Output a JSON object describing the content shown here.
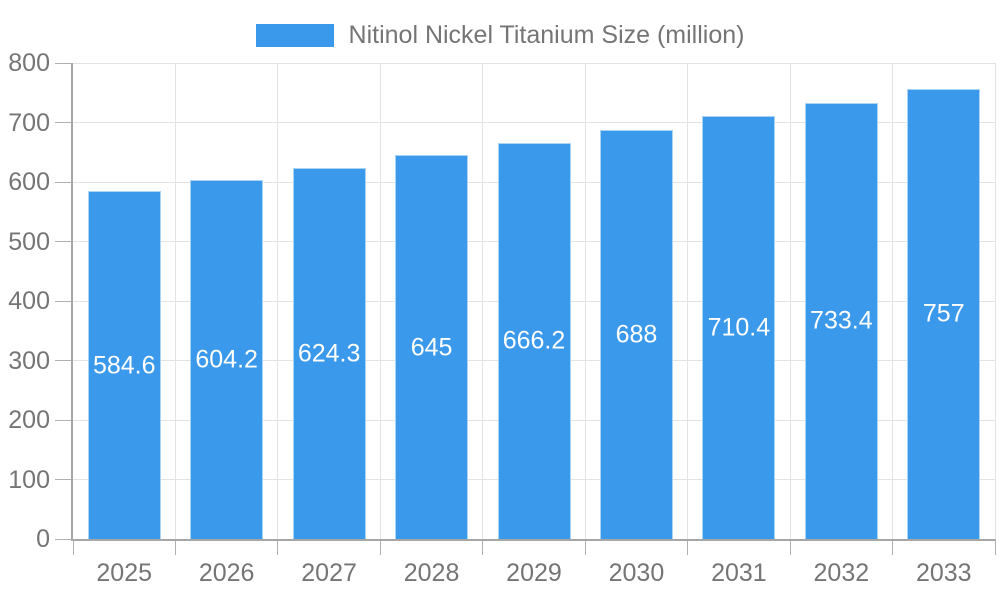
{
  "legend": {
    "label": "Nitinol Nickel Titanium Size (million)"
  },
  "chart_data": {
    "type": "bar",
    "title": "Nitinol Nickel Titanium Size (million)",
    "categories": [
      "2025",
      "2026",
      "2027",
      "2028",
      "2029",
      "2030",
      "2031",
      "2032",
      "2033"
    ],
    "values": [
      584.6,
      604.2,
      624.3,
      645,
      666.2,
      688,
      710.4,
      733.4,
      757
    ],
    "value_labels": [
      "584.6",
      "604.2",
      "624.3",
      "645",
      "666.2",
      "688",
      "710.4",
      "733.4",
      "757"
    ],
    "legend_entries": [
      "Nitinol Nickel Titanium Size (million)"
    ],
    "legend_position": "top-center",
    "xlabel": "",
    "ylabel": "",
    "ylim": [
      0,
      800
    ],
    "ytick_step": 100,
    "yticks": [
      0,
      100,
      200,
      300,
      400,
      500,
      600,
      700,
      800
    ],
    "grid": true,
    "value_label_position": "center-inside"
  },
  "colors": {
    "bar": "#3B99EB",
    "bar_border": "#A9D4F6",
    "grid": "#E3E3E3",
    "axis": "#A6A6A6",
    "tick": "#B0B0B0",
    "axis_label_text": "#757575",
    "legend_text": "#757575",
    "value_label_text": "#FFFFFF",
    "background": "#FFFFFF"
  }
}
